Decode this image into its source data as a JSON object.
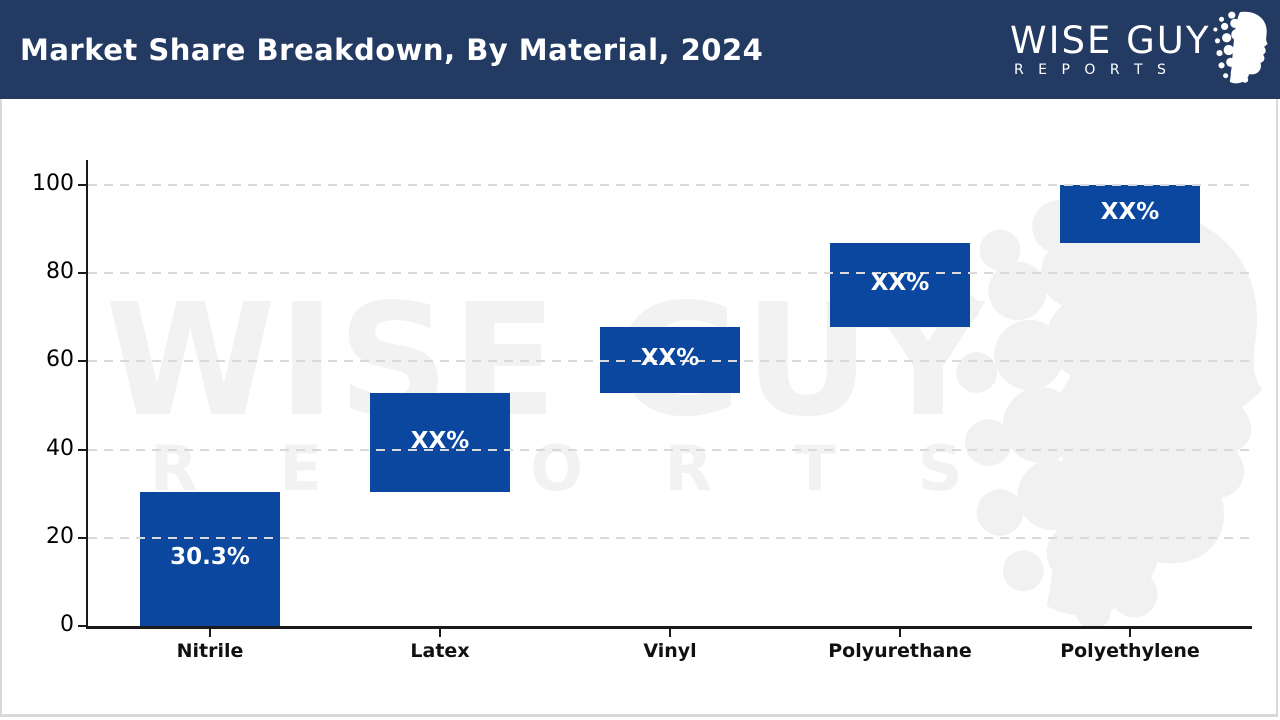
{
  "header": {
    "title": "Market Share Breakdown, By Material, 2024",
    "logo": {
      "line1": "WISE GUY",
      "line2": "R E P O R T S"
    }
  },
  "watermark": {
    "line1": "WISE GUY",
    "line2": "R E P O R T S"
  },
  "colors": {
    "header_bg": "#233a63",
    "bar": "#0b479f",
    "grid": "#d9d9d9",
    "axis": "#1a1a1a",
    "watermark": "#f2f2f2",
    "bar_label_text": "#ffffff"
  },
  "chart_data": {
    "type": "bar",
    "subtype": "waterfall",
    "title": "Market Share Breakdown, By Material, 2024",
    "xlabel": "",
    "ylabel": "",
    "categories": [
      "Nitrile",
      "Latex",
      "Vinyl",
      "Polyurethane",
      "Polyethylene"
    ],
    "segments": [
      {
        "category": "Nitrile",
        "start": 0,
        "end": 30.3,
        "label": "30.3%"
      },
      {
        "category": "Latex",
        "start": 30.3,
        "end": 52.9,
        "label": "XX%"
      },
      {
        "category": "Vinyl",
        "start": 52.9,
        "end": 67.9,
        "label": "XX%"
      },
      {
        "category": "Polyurethane",
        "start": 67.9,
        "end": 86.9,
        "label": "XX%"
      },
      {
        "category": "Polyethylene",
        "start": 86.9,
        "end": 100,
        "label": "XX%"
      }
    ],
    "y_ticks": [
      "0",
      "20",
      "40",
      "60",
      "80",
      "100"
    ],
    "y_tick_values": [
      0,
      20,
      40,
      60,
      80,
      100
    ],
    "ylim": [
      0,
      107
    ],
    "grid": "horizontal-dashed",
    "legend": "none"
  }
}
